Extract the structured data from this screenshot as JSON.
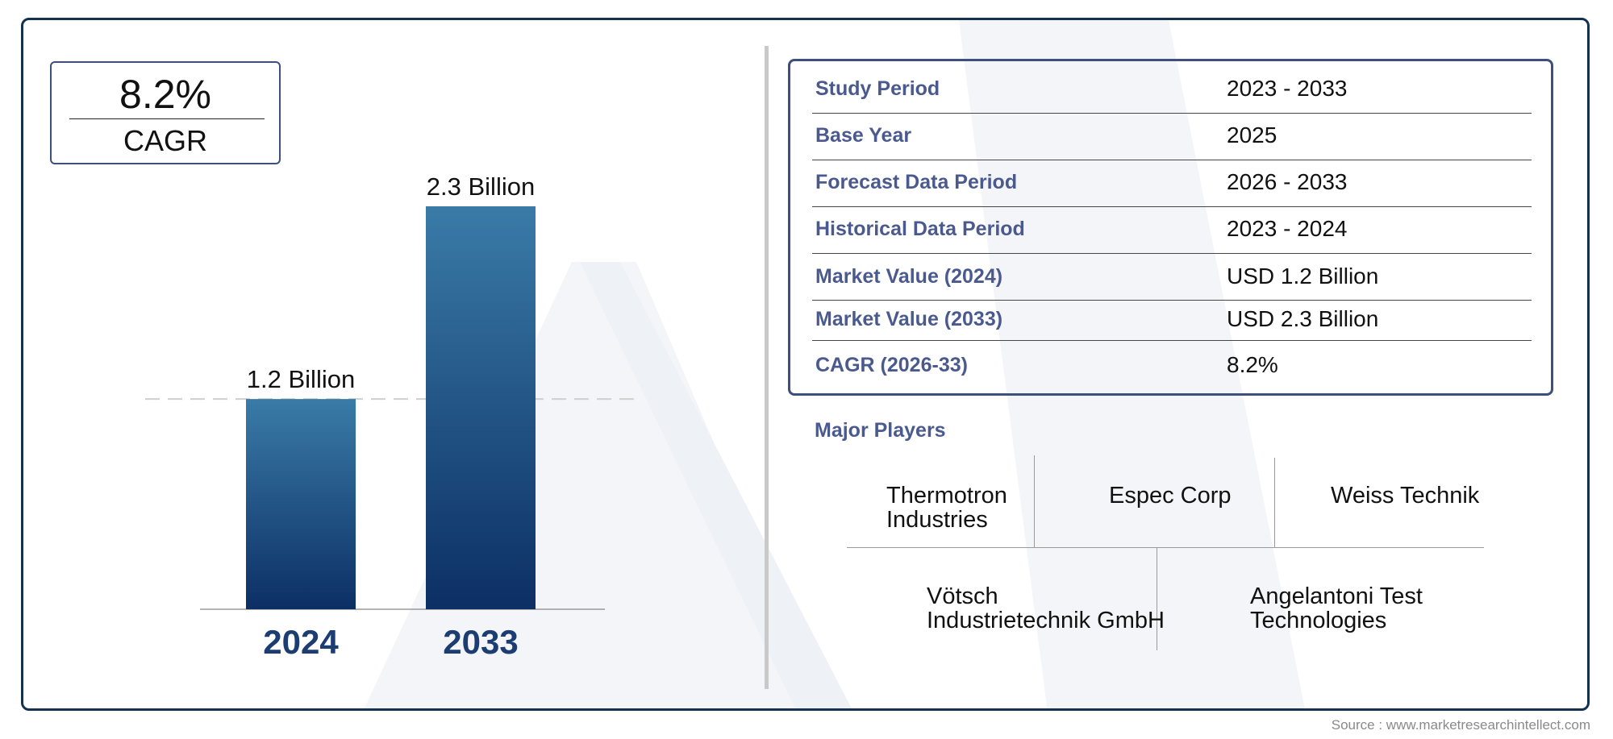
{
  "cagr_box": {
    "value": "8.2%",
    "label": "CAGR"
  },
  "chart_data": {
    "type": "bar",
    "categories": [
      "2024",
      "2033"
    ],
    "values": [
      1.2,
      2.3
    ],
    "value_labels": [
      "1.2 Billion",
      "2.3 Billion"
    ],
    "title": "",
    "xlabel": "",
    "ylabel": "",
    "grid": false,
    "reference_line": 1.2
  },
  "info_table": {
    "rows": [
      {
        "label": "Study Period",
        "value": "2023 - 2033"
      },
      {
        "label": "Base Year",
        "value": "2025"
      },
      {
        "label": "Forecast Data Period",
        "value": "2026 - 2033"
      },
      {
        "label": "Historical Data Period",
        "value": "2023 - 2024"
      },
      {
        "label": "Market Value (2024)",
        "value": "USD 1.2 Billion"
      },
      {
        "label": "Market Value (2033)",
        "value": "USD 2.3 Billion"
      },
      {
        "label": "CAGR (2026-33)",
        "value": "8.2%"
      }
    ]
  },
  "major_players": {
    "title": "Major Players",
    "players": [
      {
        "line1": "Thermotron",
        "line2": "Industries"
      },
      {
        "line1": "Espec Corp",
        "line2": ""
      },
      {
        "line1": "Weiss Technik",
        "line2": ""
      },
      {
        "line1": "Vötsch",
        "line2": "Industrietechnik GmbH"
      },
      {
        "line1": "Angelantoni Test",
        "line2": "Technologies"
      }
    ]
  },
  "source": "Source : www.marketresearchintellect.com",
  "colors": {
    "bar_top": "#3a7ba8",
    "bar_bottom": "#0c2f64",
    "accent": "#4a5a8f",
    "frame": "#14324f"
  }
}
